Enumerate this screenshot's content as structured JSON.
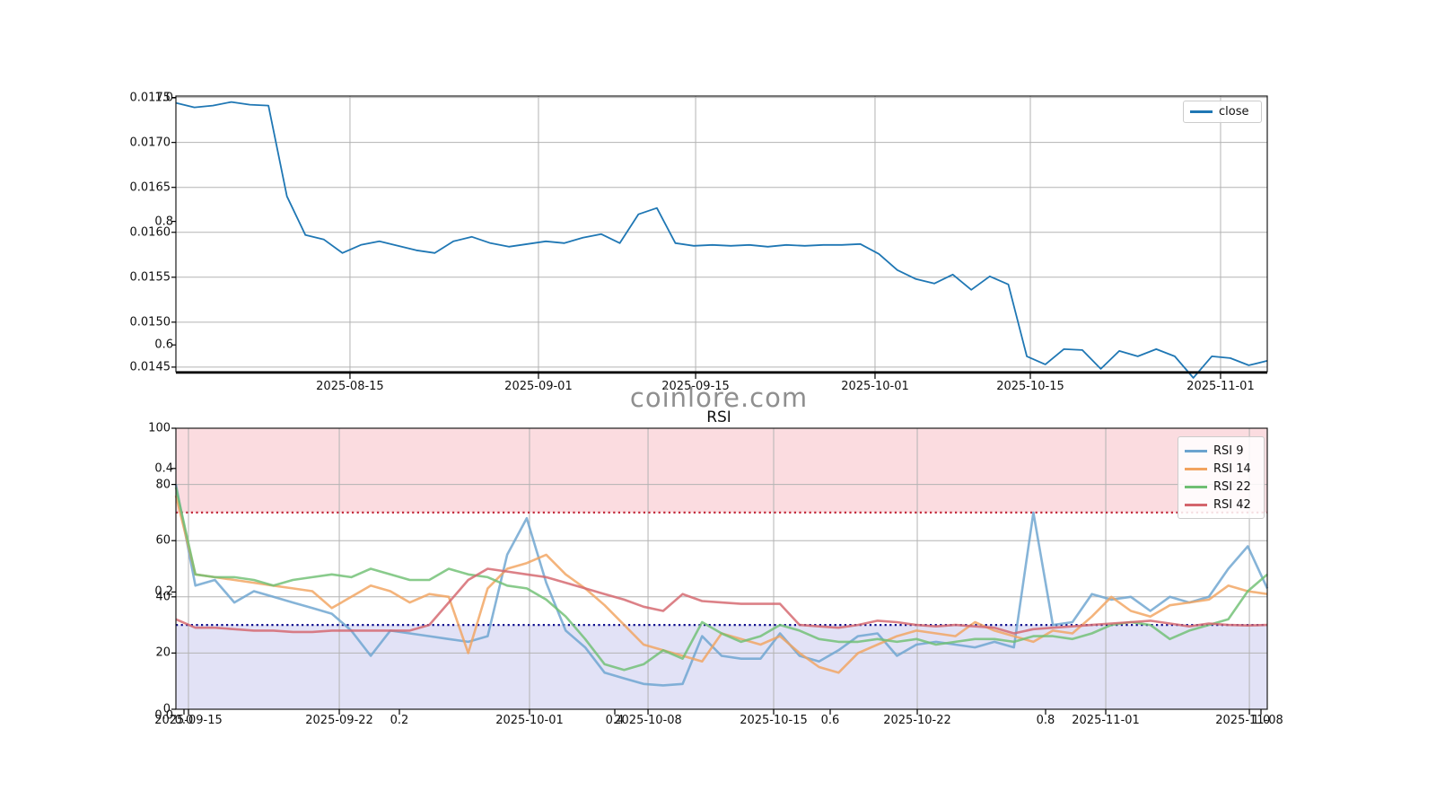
{
  "watermark": "coinlore.com",
  "figure_axis": {
    "x_tick_labels": [
      "0.0",
      "0.2",
      "0.4",
      "0.6",
      "0.8",
      "1.0"
    ],
    "y_tick_labels": [
      "1.0",
      "0.8",
      "0.6",
      "0.4",
      "0.2",
      "0.0"
    ]
  },
  "colors": {
    "grid": "#b3b3b3",
    "spine": "#1a1a1a",
    "overbought_band": "#fbdce0",
    "oversold_band": "#e2e2f6",
    "overbought_line": "#c42b3d",
    "oversold_line": "#0d0d8c"
  },
  "chart_data": [
    {
      "type": "line",
      "title": "",
      "grid": true,
      "legend_position": "upper right",
      "ylim": [
        0.014449,
        0.017516
      ],
      "y_ticks": [
        0.0175,
        0.017,
        0.0165,
        0.016,
        0.0155,
        0.015,
        0.0145
      ],
      "y_tick_labels": [
        "0.0175",
        "0.0170",
        "0.0165",
        "0.0160",
        "0.0155",
        "0.0150",
        "0.0145"
      ],
      "x_ticks": [
        {
          "label": "2025-08-15",
          "pos": 0.1595
        },
        {
          "label": "2025-09-01",
          "pos": 0.3322
        },
        {
          "label": "2025-09-15",
          "pos": 0.4762
        },
        {
          "label": "2025-10-01",
          "pos": 0.6406
        },
        {
          "label": "2025-10-15",
          "pos": 0.7829
        },
        {
          "label": "2025-11-01",
          "pos": 0.9572
        }
      ],
      "series": [
        {
          "name": "close",
          "color": "#1f77b4",
          "values": [
            0.01744,
            0.01739,
            0.01741,
            0.01745,
            0.01742,
            0.01741,
            0.0164,
            0.01597,
            0.01592,
            0.01577,
            0.01586,
            0.0159,
            0.01585,
            0.0158,
            0.01577,
            0.0159,
            0.01595,
            0.01588,
            0.01584,
            0.01587,
            0.0159,
            0.01588,
            0.01594,
            0.01598,
            0.01588,
            0.0162,
            0.01627,
            0.01588,
            0.01585,
            0.01586,
            0.01585,
            0.01586,
            0.01584,
            0.01586,
            0.01585,
            0.01586,
            0.01586,
            0.01587,
            0.01576,
            0.01558,
            0.01548,
            0.01543,
            0.01553,
            0.01536,
            0.01551,
            0.01542,
            0.01462,
            0.01453,
            0.0147,
            0.01469,
            0.01448,
            0.01468,
            0.01462,
            0.0147,
            0.01462,
            0.01438,
            0.01462,
            0.0146,
            0.01452,
            0.01457
          ]
        }
      ]
    },
    {
      "type": "line",
      "title": "RSI",
      "grid": true,
      "legend_position": "upper right",
      "ylim": [
        0,
        100
      ],
      "y_ticks": [
        0,
        20,
        40,
        60,
        80,
        100
      ],
      "y_tick_labels": [
        "0",
        "20",
        "40",
        "60",
        "80",
        "100"
      ],
      "x_ticks": [
        {
          "label": "2025-09-15",
          "pos": 0.0115
        },
        {
          "label": "2025-09-22",
          "pos": 0.1497
        },
        {
          "label": "2025-10-01",
          "pos": 0.324
        },
        {
          "label": "2025-10-08",
          "pos": 0.4326
        },
        {
          "label": "2025-10-15",
          "pos": 0.5477
        },
        {
          "label": "2025-10-22",
          "pos": 0.6793
        },
        {
          "label": "2025-11-01",
          "pos": 0.852
        },
        {
          "label": "2025-11-08",
          "pos": 0.9836
        }
      ],
      "overbought_level": 70,
      "oversold_level": 30,
      "bands": [
        {
          "from": 70,
          "to": 100,
          "color": "#fbdce0"
        },
        {
          "from": 0,
          "to": 30,
          "color": "#e2e2f6"
        }
      ],
      "threshold_lines": [
        {
          "value": 70,
          "color": "#c42b3d"
        },
        {
          "value": 30,
          "color": "#0d0d8c"
        }
      ],
      "series": [
        {
          "name": "RSI 9",
          "color": "#6ba3cf",
          "values": [
            80,
            44,
            46,
            38,
            42,
            40,
            38,
            36,
            34,
            28,
            19,
            28,
            27,
            26,
            25,
            24,
            26,
            55,
            68,
            45,
            28,
            22,
            13,
            11,
            9,
            8.5,
            9,
            26,
            19,
            18,
            18,
            27,
            19,
            17,
            21,
            26,
            27,
            19,
            23,
            24,
            23,
            22,
            24,
            22,
            70,
            30,
            31,
            41,
            39,
            40,
            35,
            40,
            38,
            40,
            50,
            58,
            43
          ]
        },
        {
          "name": "RSI 14",
          "color": "#f2a35f",
          "values": [
            76,
            48,
            47,
            46,
            45,
            44,
            43,
            42,
            36,
            40,
            44,
            42,
            38,
            41,
            40,
            20,
            43,
            50,
            52,
            55,
            48,
            43,
            37,
            30,
            23,
            21,
            19,
            17,
            27,
            25,
            23,
            26,
            20,
            15,
            13,
            20,
            23,
            26,
            28,
            27,
            26,
            31,
            28,
            26,
            24,
            28,
            27,
            33,
            40,
            35,
            33,
            37,
            38,
            39,
            44,
            42,
            41
          ]
        },
        {
          "name": "RSI 22",
          "color": "#6fbf73",
          "values": [
            79,
            48,
            47,
            47,
            46,
            44,
            46,
            47,
            48,
            47,
            50,
            48,
            46,
            46,
            50,
            48,
            47,
            44,
            43,
            39,
            33,
            25,
            16,
            14,
            16,
            21,
            18,
            31,
            27,
            24,
            26,
            30,
            28,
            25,
            24,
            24,
            25,
            24,
            25,
            23,
            24,
            25,
            25,
            24,
            26,
            26,
            25,
            27,
            30,
            31,
            30,
            25,
            28,
            30,
            32,
            42,
            48
          ]
        },
        {
          "name": "RSI 42",
          "color": "#d4656c",
          "values": [
            32,
            29,
            29,
            28.5,
            28,
            28,
            27.5,
            27.5,
            28,
            28,
            28,
            28,
            28,
            30,
            38,
            46,
            50,
            49,
            48,
            47,
            45,
            43,
            41,
            39,
            36.5,
            35,
            41,
            38.5,
            38,
            37.5,
            37.5,
            37.5,
            30,
            29.5,
            29,
            30,
            31.5,
            31,
            30,
            29.5,
            30,
            29.5,
            29,
            27,
            28.5,
            29,
            29.5,
            30,
            30.5,
            31,
            31.5,
            30.5,
            29.5,
            30.5,
            30,
            29.8,
            30
          ]
        }
      ]
    }
  ]
}
